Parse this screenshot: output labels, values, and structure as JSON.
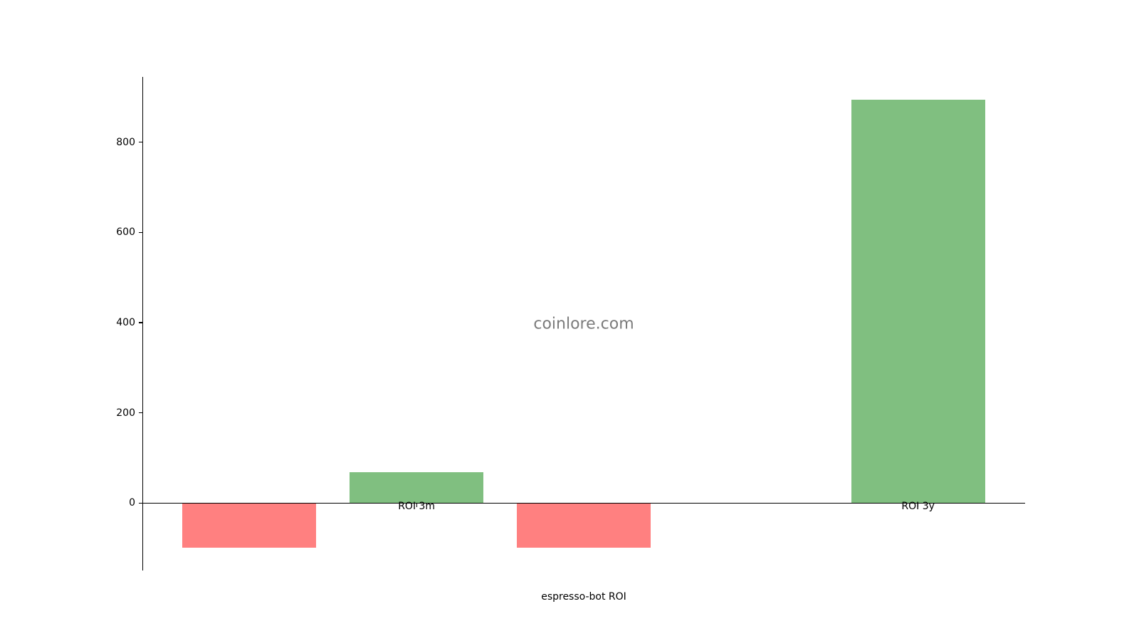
{
  "page": {
    "background": "#ffffff"
  },
  "chart_data": {
    "type": "bar",
    "title": "",
    "xlabel": "espresso-bot ROI",
    "ylabel": "",
    "watermark": "coinlore.com",
    "y_ticks": [
      0,
      200,
      400,
      600,
      800
    ],
    "ylim": [
      -149.75,
      944.75
    ],
    "xlim": [
      -0.64,
      4.64
    ],
    "bar_width": 0.8,
    "grid": false,
    "legend": false,
    "bars": [
      {
        "x": 0,
        "label": "",
        "value": -100,
        "color": "#ff8080"
      },
      {
        "x": 1,
        "label": "ROI 3m",
        "value": 68,
        "color": "#80bf80"
      },
      {
        "x": 2,
        "label": "",
        "value": -100,
        "color": "#ff8080"
      },
      {
        "x": 4,
        "label": "ROI 3y",
        "value": 895,
        "color": "#80bf80"
      }
    ],
    "colors": {
      "positive": "#80bf80",
      "negative": "#ff8080",
      "axis": "#000000",
      "tick_text": "#000000",
      "watermark": "#7b7b7b"
    }
  }
}
